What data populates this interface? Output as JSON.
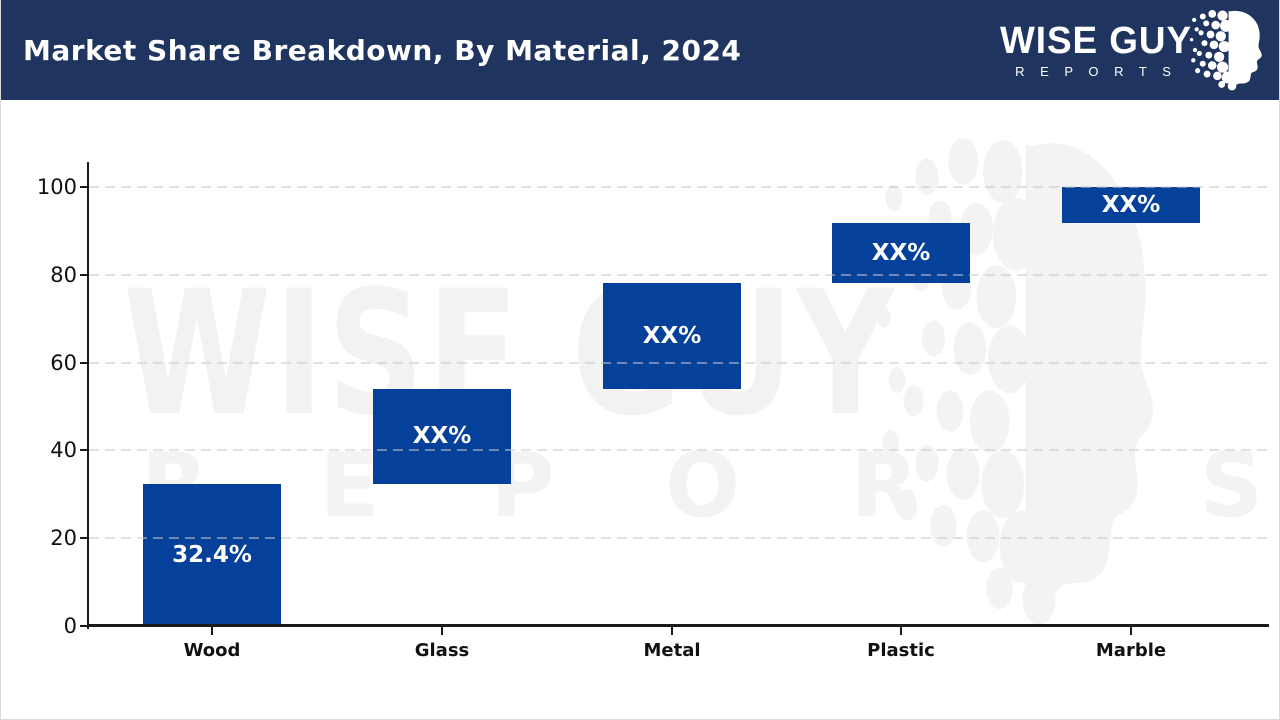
{
  "header": {
    "bg": "#1f345e",
    "title": "Market Share Breakdown, By Material, 2024",
    "logo": {
      "wordmark": "WISE GUY",
      "sub": "R E P O R T S"
    }
  },
  "watermark": {
    "wordmark": "WISE GUY",
    "sub": "R E P O R T S"
  },
  "chart_data": {
    "type": "bar",
    "subtype": "waterfall",
    "title": "Market Share Breakdown, By Material, 2024",
    "categories": [
      "Wood",
      "Glass",
      "Metal",
      "Plastic",
      "Marble"
    ],
    "segments": [
      {
        "category": "Wood",
        "start": 0,
        "end": 32.4,
        "value": 32.4,
        "label": "32.4%"
      },
      {
        "category": "Glass",
        "start": 32.4,
        "end": 54.0,
        "value": 21.6,
        "label": "XX%"
      },
      {
        "category": "Metal",
        "start": 54.0,
        "end": 78.2,
        "value": 24.2,
        "label": "XX%"
      },
      {
        "category": "Plastic",
        "start": 78.2,
        "end": 91.8,
        "value": 13.6,
        "label": "XX%"
      },
      {
        "category": "Marble",
        "start": 91.8,
        "end": 100,
        "value": 8.2,
        "label": "XX%"
      }
    ],
    "ylim": [
      0,
      100
    ],
    "yticks": [
      0,
      20,
      40,
      60,
      80,
      100
    ],
    "grid": true,
    "grid_style": "dashed",
    "grid_color": "#cccccc",
    "legend": false,
    "bar_color": "#05409a",
    "bar_label_color": "#ffffff",
    "axis_color": "#1a1a1a",
    "xlabel": "",
    "ylabel": ""
  }
}
